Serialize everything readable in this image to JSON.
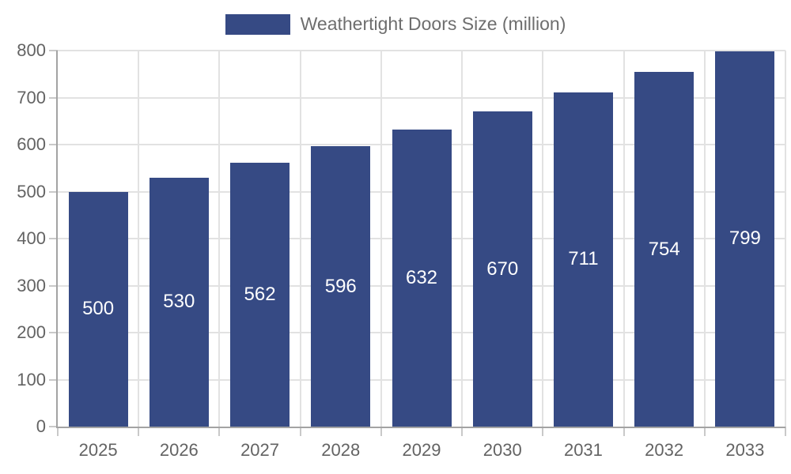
{
  "chart_data": {
    "type": "bar",
    "title": "",
    "legend_label": "Weathertight Doors Size (million)",
    "legend_position": "top-center",
    "categories": [
      "2025",
      "2026",
      "2027",
      "2028",
      "2029",
      "2030",
      "2031",
      "2032",
      "2033"
    ],
    "values": [
      500,
      530,
      562,
      596,
      632,
      670,
      711,
      754,
      799
    ],
    "xlabel": "",
    "ylabel": "",
    "ylim": [
      0,
      800
    ],
    "yticks": [
      0,
      100,
      200,
      300,
      400,
      500,
      600,
      700,
      800
    ],
    "grid": "horizontal gridlines every 100 plus vertical gridlines at category boundaries",
    "value_labels": "white numbers centered inside each bar",
    "colors": {
      "bar": "#364A84",
      "gridline": "#E2E2E2",
      "axis_line": "#A3A3A3",
      "tick_mark": "#C9C9C9",
      "tick_text": "#636363",
      "legend_text": "#6E6E6E",
      "value_label": "#FFFFFF",
      "background": "#FFFFFF"
    }
  }
}
